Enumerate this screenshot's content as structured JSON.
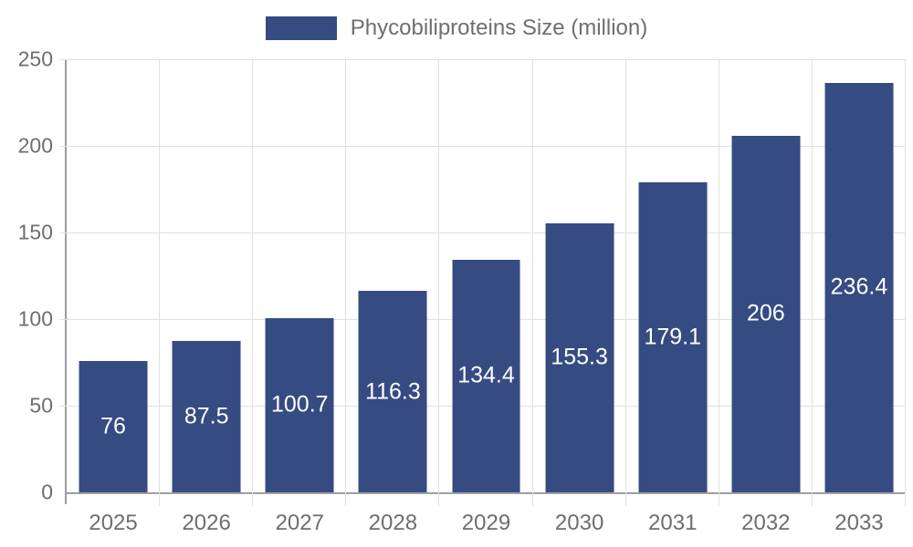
{
  "legend": {
    "swatch_color": "#364B82",
    "label": "Phycobiliproteins Size (million)"
  },
  "chart_data": {
    "type": "bar",
    "title": "",
    "legend_entries": [
      "Phycobiliproteins Size (million)"
    ],
    "legend_position": "top-center",
    "categories": [
      "2025",
      "2026",
      "2027",
      "2028",
      "2029",
      "2030",
      "2031",
      "2032",
      "2033"
    ],
    "series": [
      {
        "name": "Phycobiliproteins Size (million)",
        "values": [
          76,
          87.5,
          100.7,
          116.3,
          134.4,
          155.3,
          179.1,
          206,
          236.4
        ],
        "labels": [
          "76",
          "87.5",
          "100.7",
          "116.3",
          "134.4",
          "155.3",
          "179.1",
          "206",
          "236.4"
        ]
      }
    ],
    "xlabel": "",
    "ylabel": "",
    "ylim": [
      0,
      250
    ],
    "yticks": [
      0,
      50,
      100,
      150,
      200,
      250
    ],
    "grid": true,
    "colors": {
      "bar": "#364B82",
      "bar_label": "#ffffff",
      "axis_line": "#9e9e9e",
      "grid_line": "#e0e0e0",
      "tick_label": "#6e6e6e",
      "legend_text": "#6e6e6e",
      "background": "#ffffff"
    }
  }
}
